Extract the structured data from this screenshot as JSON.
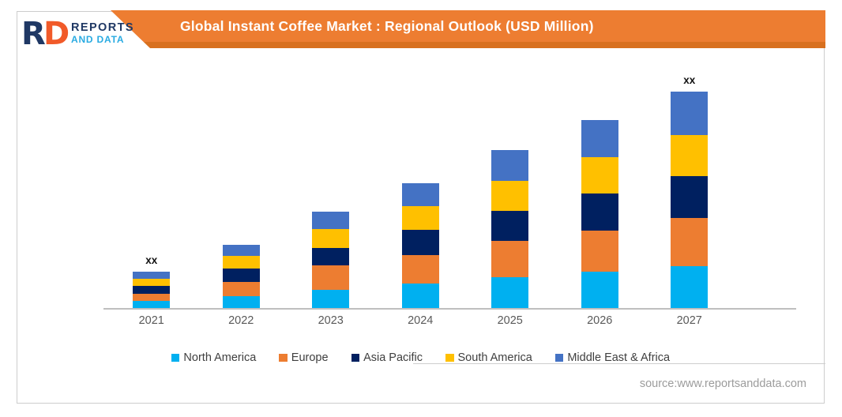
{
  "page": {
    "background": "#ffffff",
    "frame_border_color": "#cdcdcd"
  },
  "header": {
    "banner": {
      "title": "Global Instant Coffee Market : Regional Outlook (USD Million)",
      "color": "#ED7D31",
      "shadow_color": "#D8701F",
      "text_color": "#ffffff"
    },
    "logo": {
      "monogram": [
        {
          "letter": "R",
          "color": "#1F3864"
        },
        {
          "letter": "D",
          "color": "#F15A29"
        }
      ],
      "line1": "REPORTS",
      "line1_color": "#1F3864",
      "line2": "AND DATA",
      "line2_color": "#29ABE2"
    }
  },
  "chart_data": {
    "type": "bar",
    "stacked": true,
    "title": "Global Instant Coffee Market : Regional Outlook (USD Million)",
    "xlabel": "",
    "ylabel": "",
    "grid": false,
    "legend_position": "bottom",
    "values_displayed_as": "xx",
    "note": "Numeric values are hidden on the chart (shown as 'xx'); series values below are relative stacked-segment heights measured from the figure.",
    "categories": [
      "2021",
      "2022",
      "2023",
      "2024",
      "2025",
      "2026",
      "2027"
    ],
    "series": [
      {
        "name": "North America",
        "color": "#00B0F0",
        "values": [
          10,
          16,
          24,
          32,
          40,
          47,
          54
        ]
      },
      {
        "name": "Europe",
        "color": "#ED7D31",
        "values": [
          9,
          18,
          31,
          36,
          46,
          52,
          61
        ]
      },
      {
        "name": "Asia Pacific",
        "color": "#002060",
        "values": [
          10,
          17,
          22,
          32,
          38,
          47,
          53
        ]
      },
      {
        "name": "South America",
        "color": "#FFC000",
        "values": [
          9,
          16,
          24,
          30,
          38,
          46,
          52
        ]
      },
      {
        "name": "Middle East & Africa",
        "color": "#4472C4",
        "values": [
          9,
          14,
          22,
          29,
          39,
          47,
          55
        ]
      }
    ],
    "data_labels": [
      {
        "category": "2021",
        "text": "xx"
      },
      {
        "category": "2027",
        "text": "xx"
      }
    ],
    "axis_line_color": "#BFBFBF",
    "tick_label_color": "#595959",
    "legend_text_color": "#3F3F3F"
  },
  "footer": {
    "source_text": "source:www.reportsanddata.com",
    "text_color": "#9C9C9C"
  }
}
